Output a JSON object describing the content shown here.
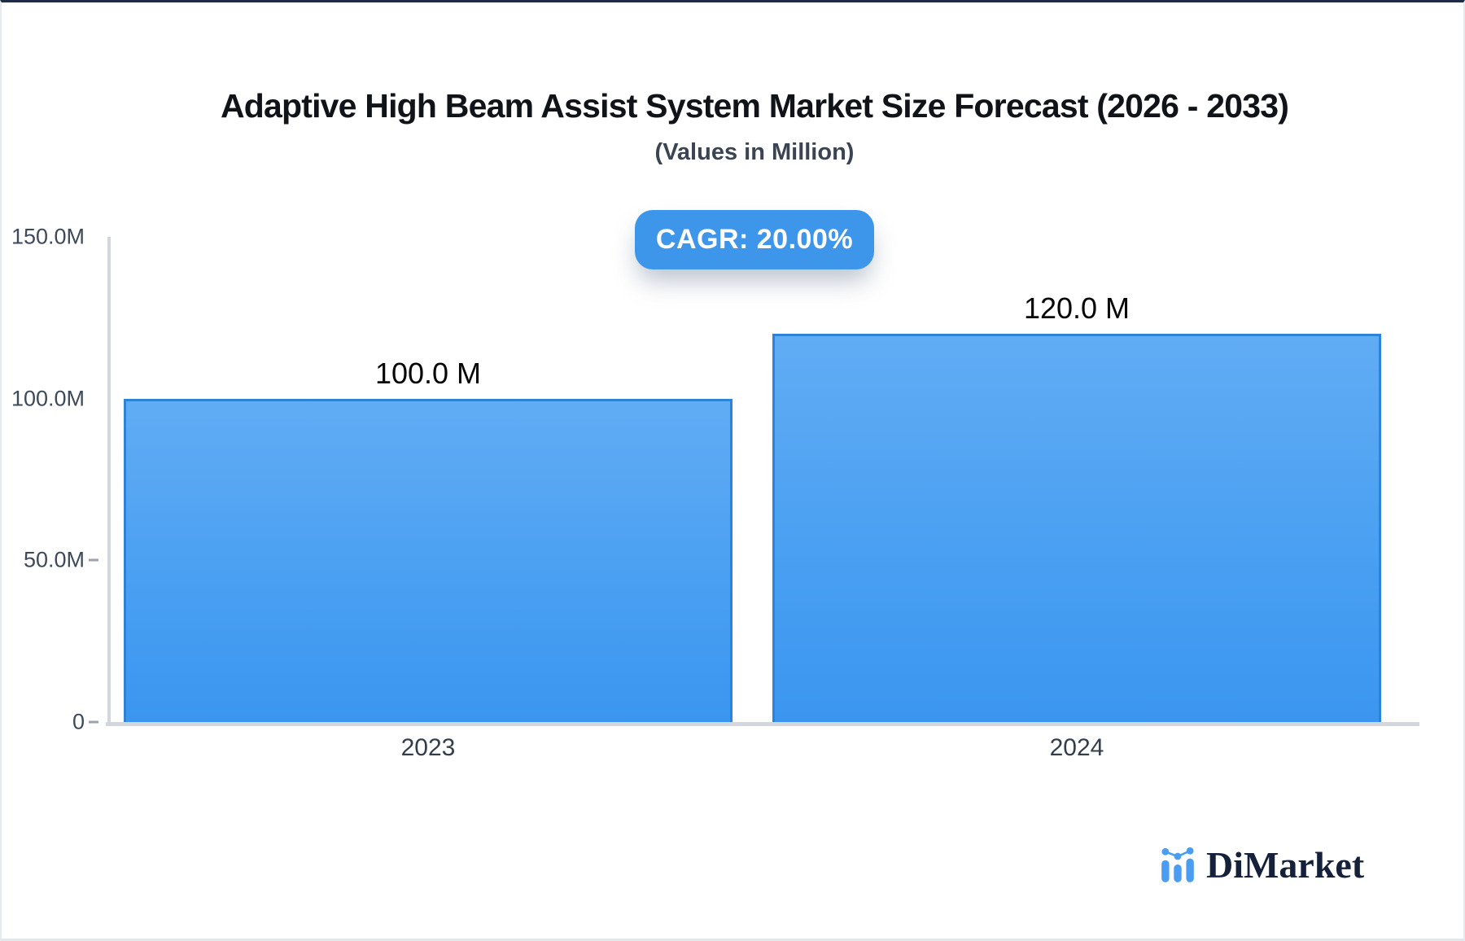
{
  "header": {
    "title": "Adaptive High Beam Assist System Market Size Forecast (2026 - 2033)",
    "subtitle": "(Values in Million)",
    "cagr_badge": "CAGR: 20.00%",
    "badge_color": "#3e96ea"
  },
  "chart_data": {
    "type": "bar",
    "categories": [
      "2023",
      "2024"
    ],
    "values": [
      100.0,
      120.0
    ],
    "value_labels": [
      "100.0 M",
      "120.0 M"
    ],
    "unit": "Million",
    "title": "Adaptive High Beam Assist System Market Size Forecast (2026 - 2033)",
    "subtitle": "(Values in Million)",
    "cagr_percent": 20.0,
    "xlabel": "",
    "ylabel": "",
    "ylim": [
      0,
      150
    ],
    "y_ticks": [
      {
        "label": "150.0M",
        "value": 150,
        "dash": false
      },
      {
        "label": "100.0M",
        "value": 100,
        "dash": false
      },
      {
        "label": "50.0M",
        "value": 50,
        "dash": true
      },
      {
        "label": "0",
        "value": 0,
        "dash": true
      }
    ],
    "grid": "off",
    "legend": "none",
    "bar_color_top": "#61acf4",
    "bar_color_bottom": "#3b96f0",
    "bar_border_color": "#2c83da"
  },
  "branding": {
    "logo_text": "DiMarket",
    "logo_icon": "bar-chart-icon",
    "logo_text_color": "#15213a",
    "logo_icon_color": "#4a9df0"
  }
}
